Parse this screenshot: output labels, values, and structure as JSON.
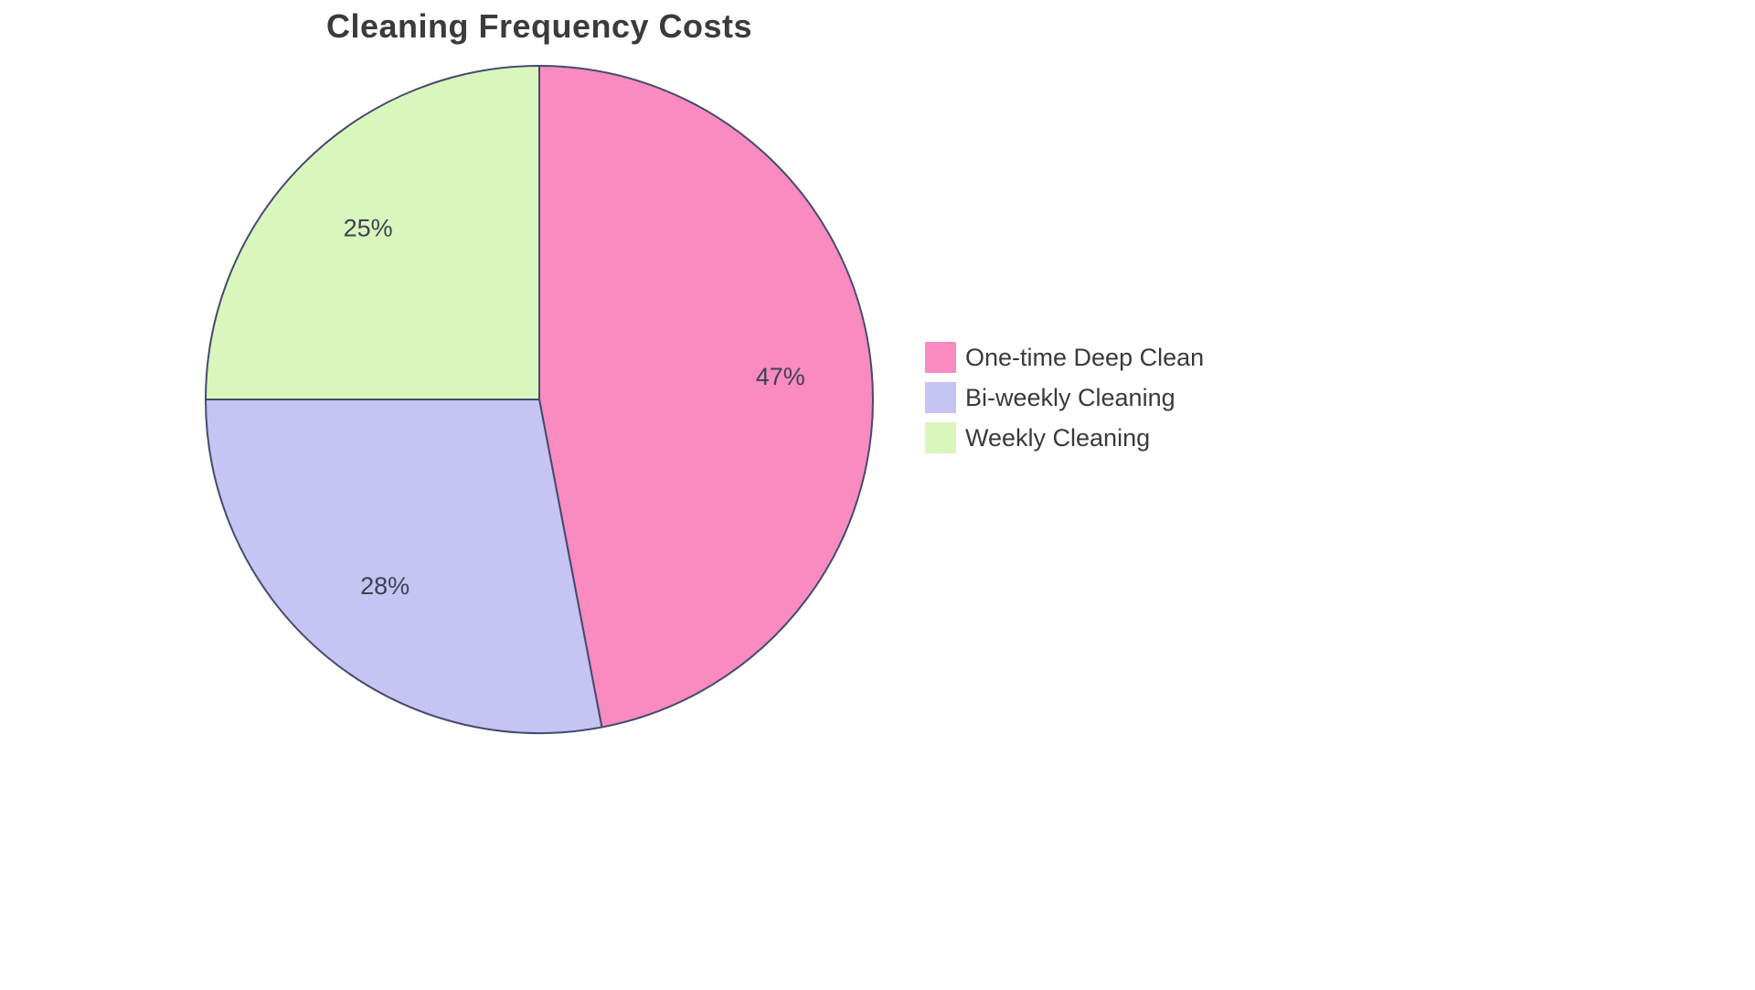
{
  "title": "Cleaning Frequency Costs",
  "chart_data": {
    "type": "pie",
    "title": "Cleaning Frequency Costs",
    "categories": [
      "One-time Deep Clean",
      "Bi-weekly Cleaning",
      "Weekly Cleaning"
    ],
    "values": [
      47,
      28,
      25
    ],
    "unit": "%",
    "slice_labels": [
      "47%",
      "28%",
      "25%"
    ],
    "colors": [
      "#F98BC1",
      "#C6C4F2",
      "#D9F6BD"
    ],
    "stroke_color": "#454a6d",
    "background": "#ffffff",
    "start_angle_deg": 0,
    "direction": "clockwise",
    "legend_position": "right",
    "grid": false
  },
  "legend": {
    "items": [
      {
        "label": "One-time Deep Clean",
        "color": "#F98BC1"
      },
      {
        "label": "Bi-weekly Cleaning",
        "color": "#C6C4F2"
      },
      {
        "label": "Weekly Cleaning",
        "color": "#D9F6BD"
      }
    ]
  }
}
